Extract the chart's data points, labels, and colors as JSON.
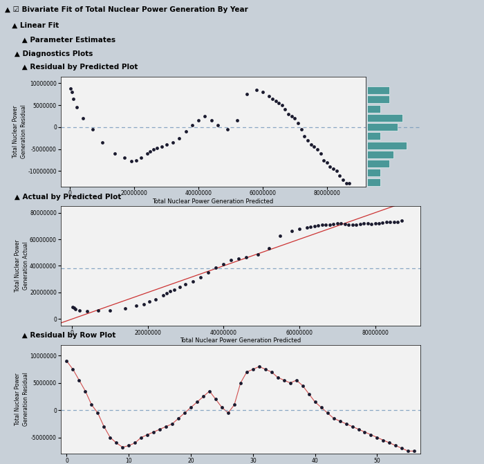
{
  "title": "Bivariate Fit of Total Nuclear Power Generation By Year",
  "plot1_xlabel": "Total Nuclear Power Generation Predicted",
  "plot1_ylabel": "Total Nuclear Power\nGeneration Residual",
  "plot1_xlim": [
    -3000000,
    92000000
  ],
  "plot1_ylim": [
    -13500000,
    11500000
  ],
  "plot1_xticks": [
    0,
    20000000,
    40000000,
    60000000,
    80000000
  ],
  "plot1_yticks": [
    -10000000,
    -5000000,
    0,
    5000000,
    10000000
  ],
  "plot2_xlabel": "Total Nuclear Power Generation Predicted",
  "plot2_ylabel": "Total Nuclear Power\nGeneration Actual",
  "plot2_xlim": [
    -3000000,
    92000000
  ],
  "plot2_ylim": [
    -5000000,
    85000000
  ],
  "plot2_xticks": [
    0,
    20000000,
    40000000,
    60000000,
    80000000
  ],
  "plot2_yticks": [
    0,
    20000000,
    40000000,
    60000000,
    80000000
  ],
  "plot3_ylabel": "Total Nuclear Power\nGeneration Residual",
  "plot3_ylim": [
    -8000000,
    12000000
  ],
  "plot3_yticks": [
    -5000000,
    0,
    5000000,
    10000000
  ],
  "bg_color": "#c8d0d8",
  "plot_bg": "#f2f2f2",
  "scatter_color": "#1a1a2e",
  "bar_color": "#4a9898",
  "line_color": "#cc3333",
  "dashed_color": "#7799bb",
  "header_bg1": "#9aaab8",
  "header_bg2": "#b0bec8",
  "header_bg3": "#bcc8d4",
  "predicted": [
    200000,
    500000,
    1000000,
    2000000,
    4000000,
    7000000,
    10000000,
    14000000,
    17000000,
    19000000,
    20500000,
    22000000,
    24000000,
    25000000,
    26000000,
    27000000,
    28500000,
    30000000,
    32000000,
    34000000,
    36000000,
    38000000,
    40000000,
    42000000,
    44000000,
    46000000,
    49000000,
    52000000,
    55000000,
    58000000,
    60000000,
    62000000,
    63000000,
    64000000,
    65000000,
    66000000,
    67000000,
    68000000,
    69000000,
    70000000,
    71000000,
    72000000,
    73000000,
    74000000,
    75000000,
    76000000,
    77000000,
    78000000,
    79000000,
    80000000,
    81000000,
    82000000,
    83000000,
    84000000,
    85000000,
    86000000,
    87000000
  ],
  "residuals": [
    8800000,
    8000000,
    6500000,
    4500000,
    2000000,
    -500000,
    -3500000,
    -6000000,
    -7000000,
    -7800000,
    -7500000,
    -7000000,
    -6000000,
    -5500000,
    -5000000,
    -4800000,
    -4500000,
    -4000000,
    -3500000,
    -2500000,
    -1000000,
    500000,
    1500000,
    2500000,
    1500000,
    500000,
    -500000,
    1500000,
    7500000,
    8500000,
    8000000,
    7000000,
    6500000,
    6000000,
    5500000,
    5000000,
    4000000,
    3000000,
    2500000,
    2000000,
    1000000,
    -500000,
    -2000000,
    -3000000,
    -4000000,
    -4500000,
    -5000000,
    -6000000,
    -7500000,
    -8000000,
    -9000000,
    -9500000,
    -10000000,
    -11000000,
    -12000000,
    -12800000,
    -12800000
  ],
  "row_residuals": [
    9000000,
    7500000,
    5500000,
    3500000,
    1000000,
    -500000,
    -3000000,
    -5000000,
    -6000000,
    -6800000,
    -6500000,
    -6000000,
    -5000000,
    -4500000,
    -4000000,
    -3500000,
    -3000000,
    -2500000,
    -1500000,
    -500000,
    500000,
    1500000,
    2500000,
    3500000,
    2000000,
    500000,
    -500000,
    1000000,
    5000000,
    7000000,
    7500000,
    8000000,
    7500000,
    7000000,
    6000000,
    5500000,
    5000000,
    5500000,
    4500000,
    3000000,
    1500000,
    500000,
    -500000,
    -1500000,
    -2000000,
    -2500000,
    -3000000,
    -3500000,
    -4000000,
    -4500000,
    -5000000,
    -5500000,
    -6000000,
    -6500000,
    -7000000,
    -7500000,
    -7500000
  ]
}
